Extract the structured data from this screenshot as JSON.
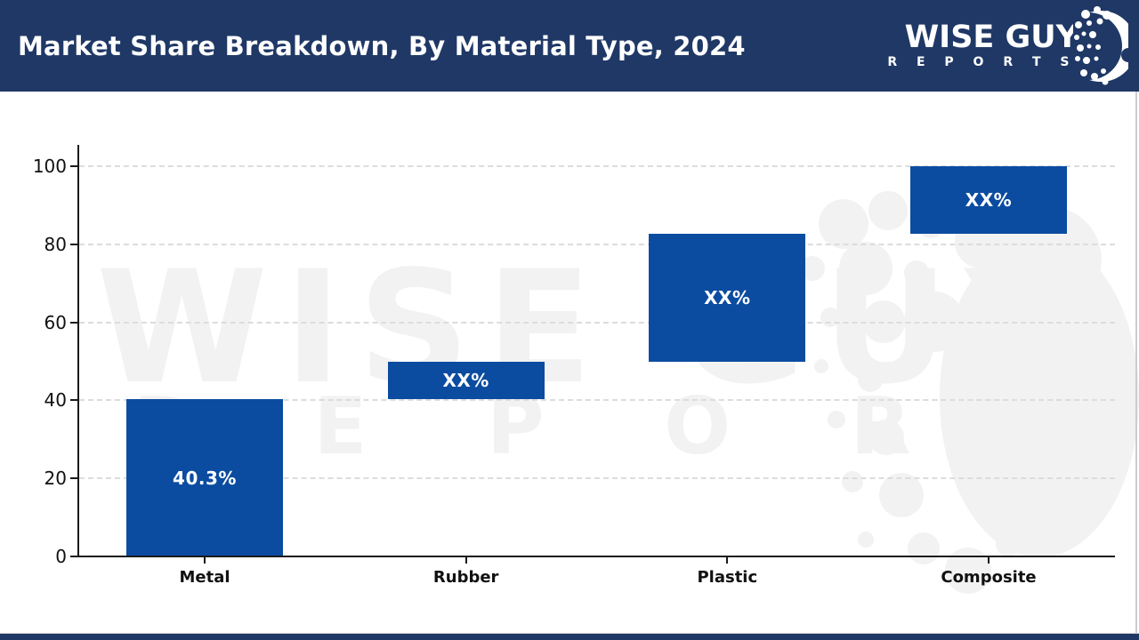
{
  "page": {
    "accent_navy": "#1f3866",
    "bar_blue": "#0b4ca0",
    "grid_color": "#dcdcdc",
    "axis_color": "#1a1a1a",
    "watermark_color": "#f2f2f2",
    "background": "#ffffff"
  },
  "header": {
    "title": "Market Share Breakdown, By Material Type, 2024",
    "logo": {
      "line1": "WISE GUY",
      "line2": "R E P O R T S"
    }
  },
  "watermark": {
    "line1": "WISE GUY",
    "line2": "R E P O R T S"
  },
  "chart_data": {
    "type": "bar",
    "subtype": "waterfall",
    "title": "Market Share Breakdown, By Material Type, 2024",
    "categories": [
      "Metal",
      "Rubber",
      "Plastic",
      "Composite"
    ],
    "segments": [
      {
        "category": "Metal",
        "base": 0,
        "top": 40.3,
        "label": "40.3%"
      },
      {
        "category": "Rubber",
        "base": 40.3,
        "top": 49.9,
        "label": "XX%"
      },
      {
        "category": "Plastic",
        "base": 49.9,
        "top": 82.7,
        "label": "XX%"
      },
      {
        "category": "Composite",
        "base": 82.7,
        "top": 100,
        "label": "XX%"
      }
    ],
    "yticks": [
      0,
      20,
      40,
      60,
      80,
      100
    ],
    "ylim": [
      0,
      100
    ],
    "xlabel": "",
    "ylabel": "",
    "grid": {
      "axis": "y",
      "style": "dashed",
      "on": true
    },
    "legend": "none"
  }
}
